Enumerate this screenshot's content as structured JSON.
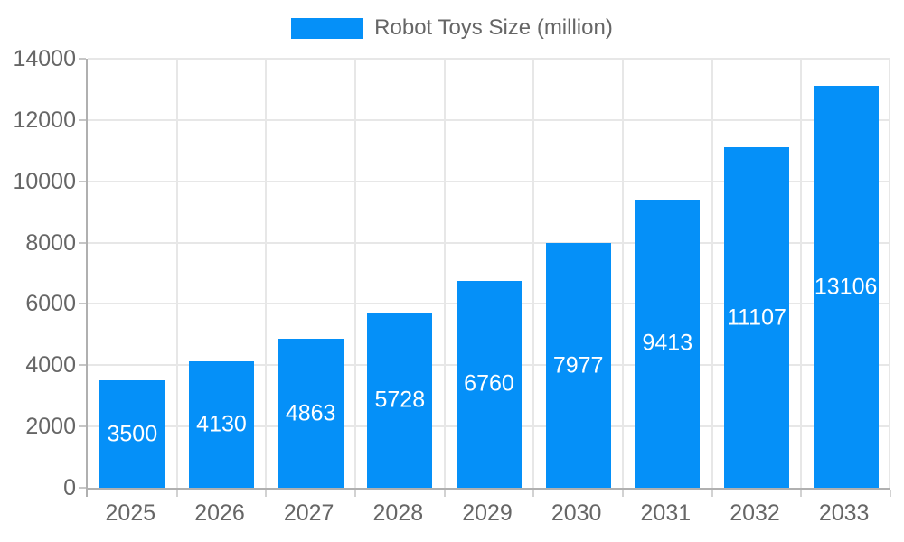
{
  "chart_data": {
    "type": "bar",
    "title": "Robot Toys Size (million)",
    "legend": {
      "label": "Robot Toys Size (million)",
      "position": "top"
    },
    "categories": [
      "2025",
      "2026",
      "2027",
      "2028",
      "2029",
      "2030",
      "2031",
      "2032",
      "2033"
    ],
    "values": [
      3500,
      4130,
      4863,
      5728,
      6760,
      7977,
      9413,
      11107,
      13106
    ],
    "data_labels": [
      "3500",
      "4130",
      "4863",
      "5728",
      "6760",
      "7977",
      "9413",
      "11107",
      "13106"
    ],
    "xlabel": "",
    "ylabel": "",
    "ylim": [
      0,
      14000
    ],
    "y_ticks": [
      0,
      2000,
      4000,
      6000,
      8000,
      10000,
      12000,
      14000
    ],
    "grid": true,
    "colors": {
      "bar": "#0590f8",
      "bar_label_text": "#ffffff",
      "axis_text": "#666666",
      "grid_line": "#e7e7e7",
      "axis_line": "#b0b0b0"
    }
  }
}
